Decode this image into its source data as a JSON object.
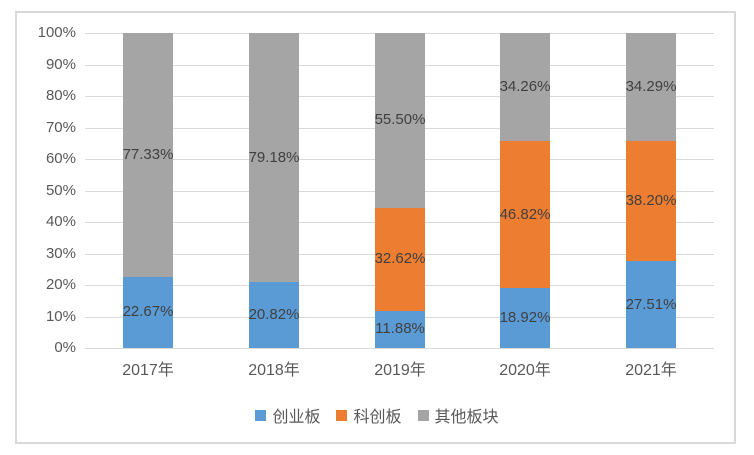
{
  "chart_data": {
    "type": "bar",
    "variant": "stacked-100-percent-column",
    "title": "",
    "xlabel": "",
    "ylabel": "",
    "categories": [
      "2017年",
      "2018年",
      "2019年",
      "2020年",
      "2021年"
    ],
    "series": [
      {
        "name": "创业板",
        "color": "#5B9BD5",
        "values": [
          22.67,
          20.82,
          11.88,
          18.92,
          27.51
        ],
        "labels": [
          "22.67%",
          "20.82%",
          "11.88%",
          "18.92%",
          "27.51%"
        ]
      },
      {
        "name": "科创板",
        "color": "#ED7D31",
        "values": [
          0,
          0,
          32.62,
          46.82,
          38.2
        ],
        "labels": [
          "",
          "",
          "32.62%",
          "46.82%",
          "38.20%"
        ]
      },
      {
        "name": "其他板块",
        "color": "#A5A5A5",
        "values": [
          77.33,
          79.18,
          55.5,
          34.26,
          34.29
        ],
        "labels": [
          "77.33%",
          "79.18%",
          "55.50%",
          "34.26%",
          "34.29%"
        ]
      }
    ],
    "y_ticks": [
      "100%",
      "90%",
      "80%",
      "70%",
      "60%",
      "50%",
      "40%",
      "30%",
      "20%",
      "10%",
      "0%"
    ],
    "ylim": [
      0,
      100
    ],
    "grid": true,
    "legend_position": "bottom"
  },
  "style_colors": {
    "gridline": "#D9D9D9",
    "frame_border": "#D9D9D9",
    "axis_text": "#595959",
    "data_label_text": "#404040",
    "background": "#FFFFFF"
  }
}
